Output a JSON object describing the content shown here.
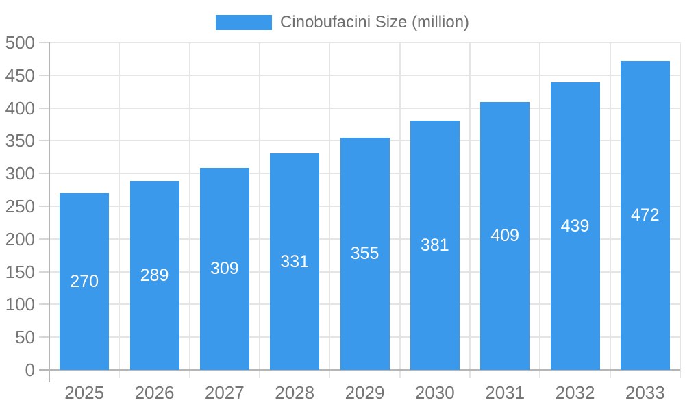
{
  "chart_data": {
    "type": "bar",
    "title": "",
    "legend": {
      "label": "Cinobufacini Size (million)",
      "position": "top"
    },
    "categories": [
      "2025",
      "2026",
      "2027",
      "2028",
      "2029",
      "2030",
      "2031",
      "2032",
      "2033"
    ],
    "series": [
      {
        "name": "Cinobufacini Size (million)",
        "values": [
          270,
          289,
          309,
          331,
          355,
          381,
          409,
          439,
          472
        ]
      }
    ],
    "ylim": [
      0,
      500
    ],
    "ytick_step": 50,
    "ytick_labels": [
      "0",
      "50",
      "100",
      "150",
      "200",
      "250",
      "300",
      "350",
      "400",
      "450",
      "500"
    ],
    "grid": true,
    "value_labels_inside_bars": true,
    "colors": {
      "bar": "#3B99EB",
      "axis": "#B6B6B6",
      "gridline": "#E5E5E5",
      "tick": "#D6D6D6",
      "axis_label_text": "#757575",
      "legend_text": "#6E6E6E",
      "value_label_text": "#FFFFFF",
      "background": "#FFFFFF"
    }
  }
}
